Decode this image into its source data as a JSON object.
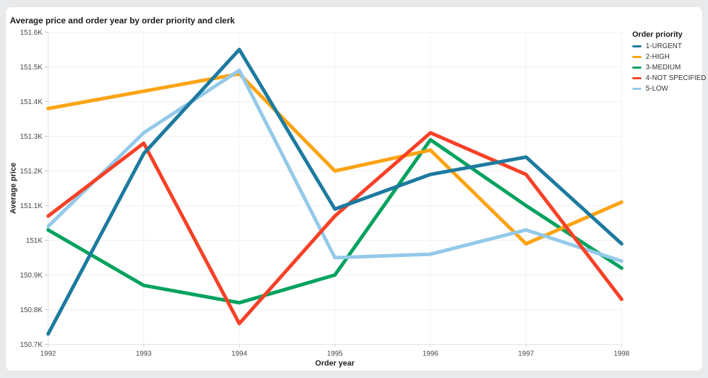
{
  "title": "Average price and order year by order priority and clerk",
  "legend": {
    "title": "Order priority"
  },
  "colors": {
    "urgent": "#1d7a9f",
    "high": "#fca312",
    "medium": "#00a25e",
    "not_specified": "#f74127",
    "low": "#94c9e9"
  },
  "chart_data": {
    "type": "line",
    "title": "Average price and order year by order priority and clerk",
    "xlabel": "Order year",
    "ylabel": "Average price",
    "legend_title": "Order priority",
    "legend_position": "top-right",
    "grid": true,
    "x": [
      1992,
      1993,
      1994,
      1995,
      1996,
      1997,
      1998
    ],
    "xlim": [
      1992,
      1998
    ],
    "ylim": [
      150700,
      151600
    ],
    "xticks": [
      "1992",
      "1993",
      "1994",
      "1995",
      "1996",
      "1997",
      "1998"
    ],
    "yticks": [
      {
        "label": "151.6K",
        "value": 151600
      },
      {
        "label": "151.5K",
        "value": 151500
      },
      {
        "label": "151.4K",
        "value": 151400
      },
      {
        "label": "151.3K",
        "value": 151300
      },
      {
        "label": "151.2K",
        "value": 151200
      },
      {
        "label": "151.1K",
        "value": 151100
      },
      {
        "label": "151K",
        "value": 151000
      },
      {
        "label": "150.9K",
        "value": 150900
      },
      {
        "label": "150.8K",
        "value": 150800
      },
      {
        "label": "150.7K",
        "value": 150700
      }
    ],
    "series": [
      {
        "name": "1-URGENT",
        "color": "#1d7a9f",
        "values": [
          150730,
          151250,
          151550,
          151090,
          151190,
          151240,
          150990
        ]
      },
      {
        "name": "2-HIGH",
        "color": "#fca312",
        "values": [
          151380,
          151430,
          151480,
          151200,
          151260,
          150990,
          151110
        ]
      },
      {
        "name": "3-MEDIUM",
        "color": "#00a25e",
        "values": [
          151030,
          150870,
          150820,
          150900,
          151290,
          151100,
          150920
        ]
      },
      {
        "name": "4-NOT SPECIFIED",
        "color": "#f74127",
        "values": [
          151070,
          151280,
          150760,
          151070,
          151310,
          151190,
          150830
        ]
      },
      {
        "name": "5-LOW",
        "color": "#94c9e9",
        "values": [
          151040,
          151310,
          151490,
          150950,
          150960,
          151030,
          150940
        ]
      }
    ]
  }
}
